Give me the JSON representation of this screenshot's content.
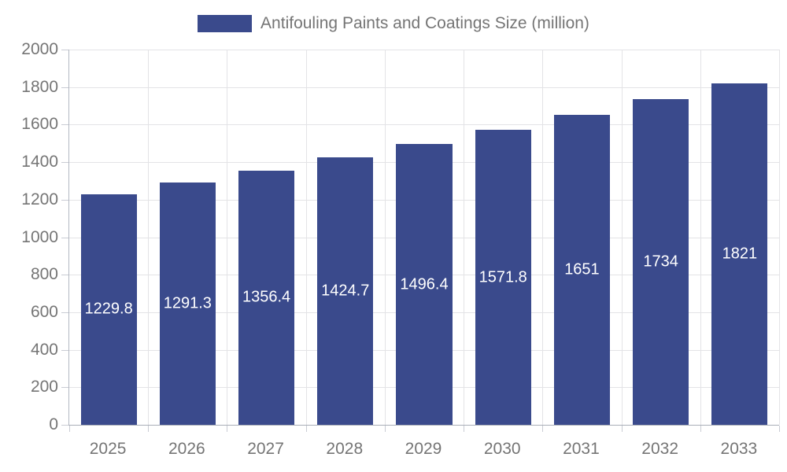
{
  "legend": {
    "label": "Antifouling Paints and Coatings Size (million)"
  },
  "colors": {
    "bar": "#3A4A8C",
    "grid": "#E3E3E6",
    "axis": "#B3B8C2",
    "tick": "#C9CCD4",
    "text": "#757575",
    "value_label": "#FFFFFF",
    "background": "#FFFFFF"
  },
  "chart_data": {
    "type": "bar",
    "title": "Antifouling Paints and Coatings Size (million)",
    "categories": [
      "2025",
      "2026",
      "2027",
      "2028",
      "2029",
      "2030",
      "2031",
      "2032",
      "2033"
    ],
    "series": [
      {
        "name": "Antifouling Paints and Coatings Size (million)",
        "values": [
          1229.8,
          1291.3,
          1356.4,
          1424.7,
          1496.4,
          1571.8,
          1651,
          1734,
          1821
        ]
      }
    ],
    "value_labels": [
      "1229.8",
      "1291.3",
      "1356.4",
      "1424.7",
      "1496.4",
      "1571.8",
      "1651",
      "1734",
      "1821"
    ],
    "xlabel": "",
    "ylabel": "",
    "ylim": [
      0,
      2000
    ],
    "yticks": [
      0,
      200,
      400,
      600,
      800,
      1000,
      1200,
      1400,
      1600,
      1800,
      2000
    ],
    "grid": true,
    "legend_position": "top",
    "value_label_position": "inside-middle",
    "bar_width_fraction": 0.71
  }
}
